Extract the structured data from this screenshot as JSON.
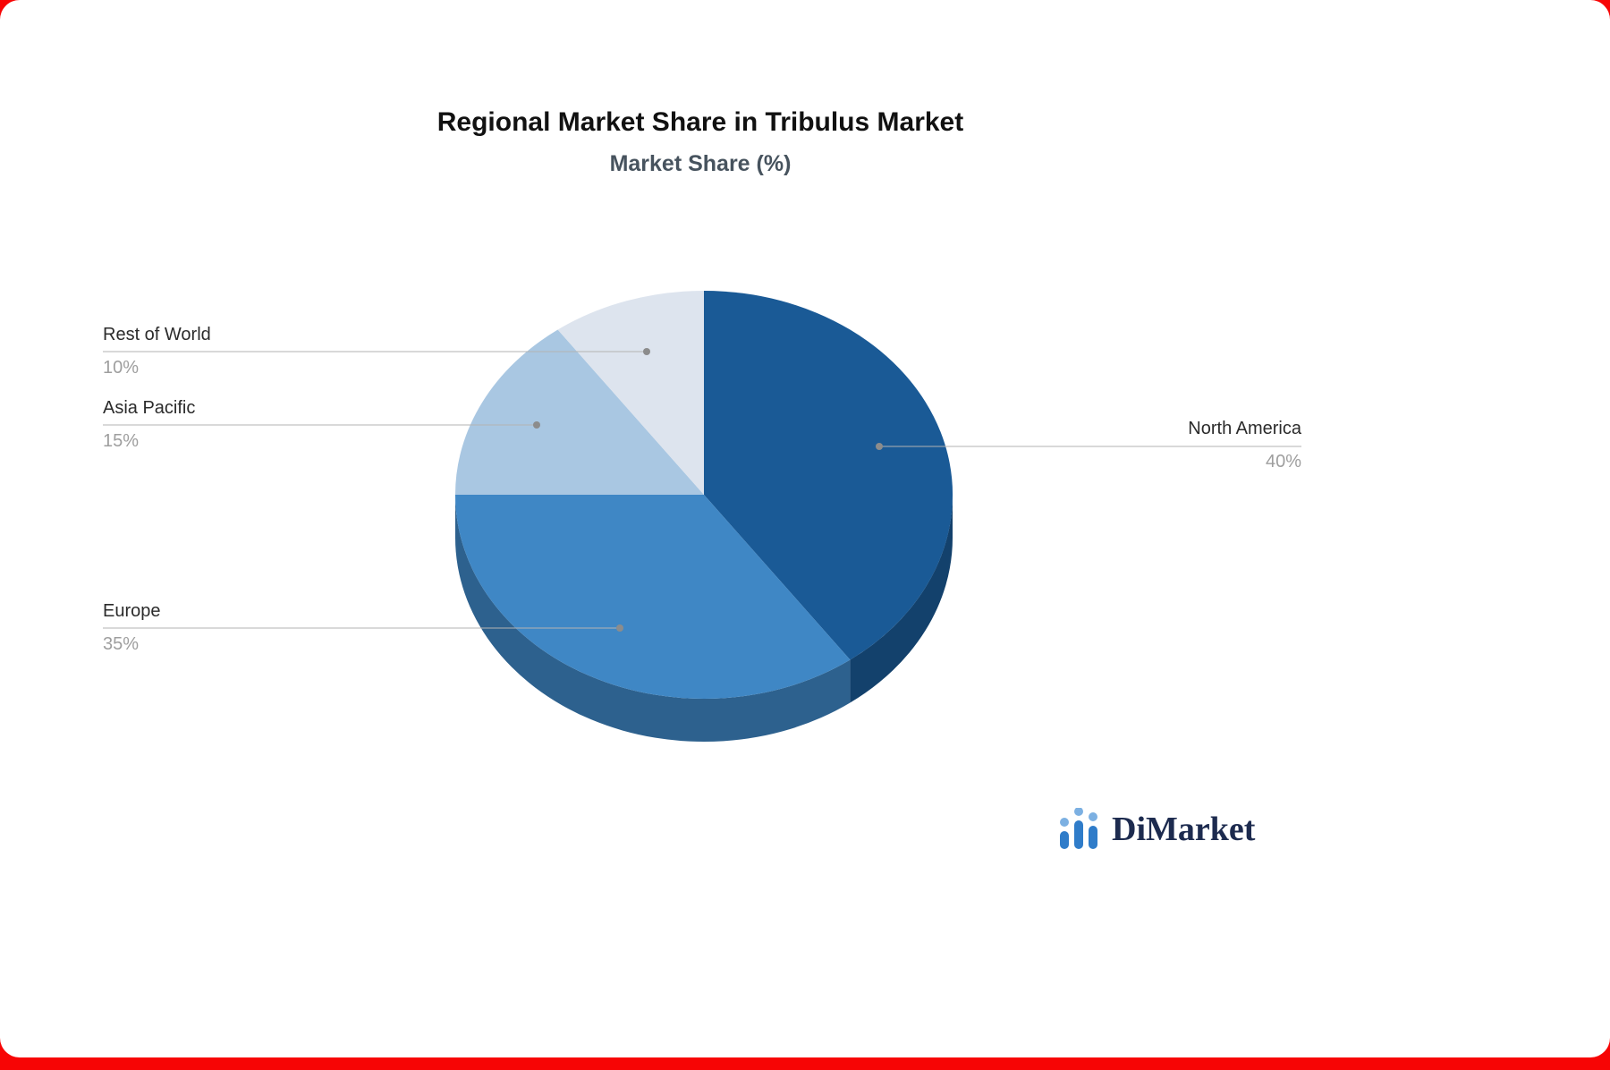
{
  "frame": {
    "border_color": "#f70505"
  },
  "chart_data": {
    "type": "pie",
    "style": "3d",
    "title": "Regional Market Share in Tribulus Market",
    "subtitle": "Market Share (%)",
    "labels": [
      "North America",
      "Europe",
      "Asia Pacific",
      "Rest of World"
    ],
    "values": [
      40,
      35,
      15,
      10
    ],
    "display_values": [
      "40%",
      "35%",
      "15%",
      "10%"
    ],
    "colors": [
      "#1a5a96",
      "#3f87c5",
      "#a9c7e2",
      "#dde4ee"
    ],
    "start_angle_deg": 0,
    "direction": "clockwise",
    "legend_position": "none",
    "leader_line_color": "#b3b3b3",
    "label_color": "#2b2b2b",
    "value_color": "#9e9e9e"
  },
  "branding": {
    "name": "DiMarket"
  }
}
